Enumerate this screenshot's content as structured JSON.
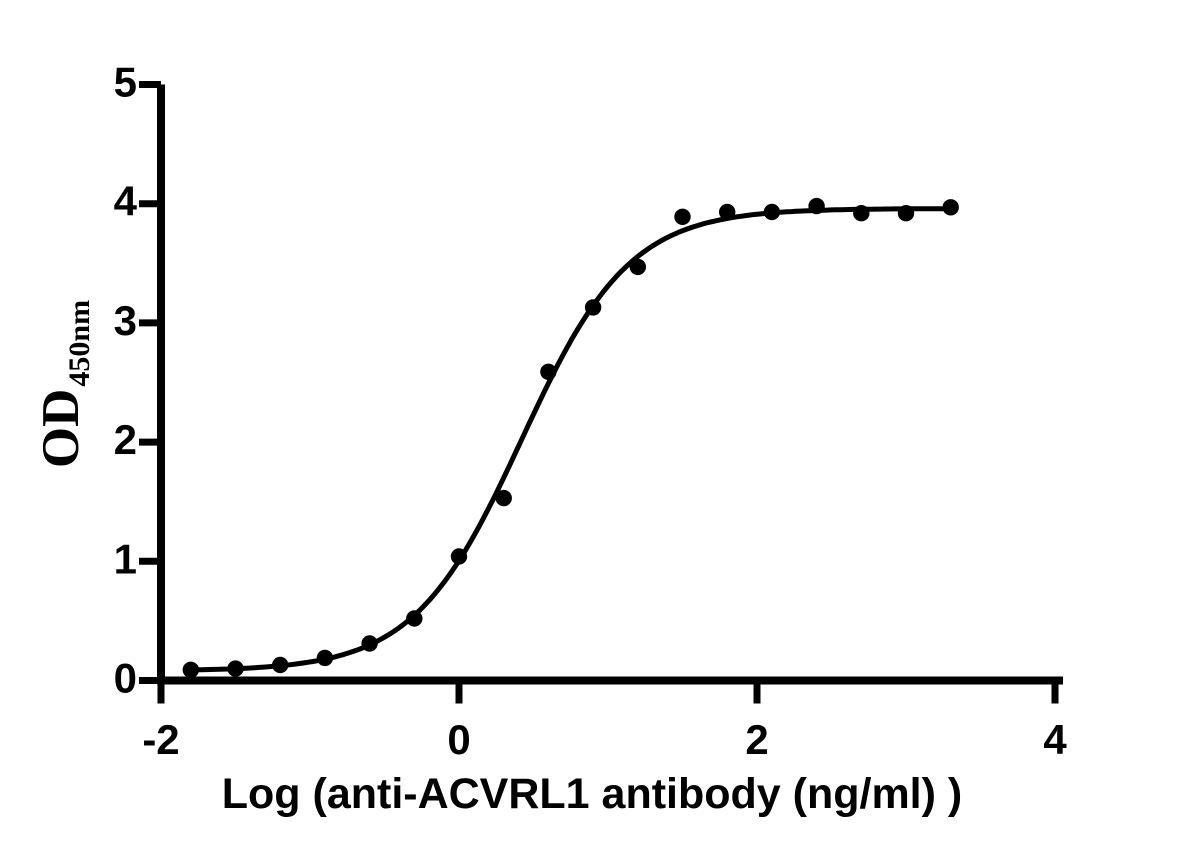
{
  "figure": {
    "background_color": "#ffffff",
    "ink_color": "#000000"
  },
  "chart_data": {
    "type": "scatter",
    "title": "",
    "xlabel": "Log（anti-ACVRL1 antibody（ng/ml））",
    "ylabel": "OD",
    "ylabel_subscript": "450nm",
    "x_axis": {
      "min": -2,
      "max": 4,
      "ticks": [
        -2,
        0,
        2,
        4
      ]
    },
    "y_axis": {
      "min": 0,
      "max": 5,
      "ticks": [
        0,
        1,
        2,
        3,
        4,
        5
      ]
    },
    "grid": false,
    "legend": false,
    "marker": {
      "shape": "filled-circle",
      "color": "#000000"
    },
    "points": [
      {
        "x": -1.8,
        "y": 0.09
      },
      {
        "x": -1.5,
        "y": 0.1
      },
      {
        "x": -1.2,
        "y": 0.13
      },
      {
        "x": -0.9,
        "y": 0.19
      },
      {
        "x": -0.6,
        "y": 0.31
      },
      {
        "x": -0.3,
        "y": 0.52
      },
      {
        "x": 0.0,
        "y": 1.04
      },
      {
        "x": 0.3,
        "y": 1.53
      },
      {
        "x": 0.6,
        "y": 2.59
      },
      {
        "x": 0.9,
        "y": 3.13
      },
      {
        "x": 1.2,
        "y": 3.47
      },
      {
        "x": 1.5,
        "y": 3.89
      },
      {
        "x": 1.8,
        "y": 3.93
      },
      {
        "x": 2.1,
        "y": 3.93
      },
      {
        "x": 2.4,
        "y": 3.98
      },
      {
        "x": 2.7,
        "y": 3.92
      },
      {
        "x": 3.0,
        "y": 3.92
      },
      {
        "x": 3.3,
        "y": 3.97
      }
    ],
    "fit_curve": {
      "model": "four-parameter-logistic",
      "bottom": 0.08,
      "top": 3.96,
      "logEC50": 0.42,
      "hillslope": 1.2,
      "x_start": -1.82,
      "x_end": 3.3,
      "color": "#000000"
    }
  }
}
